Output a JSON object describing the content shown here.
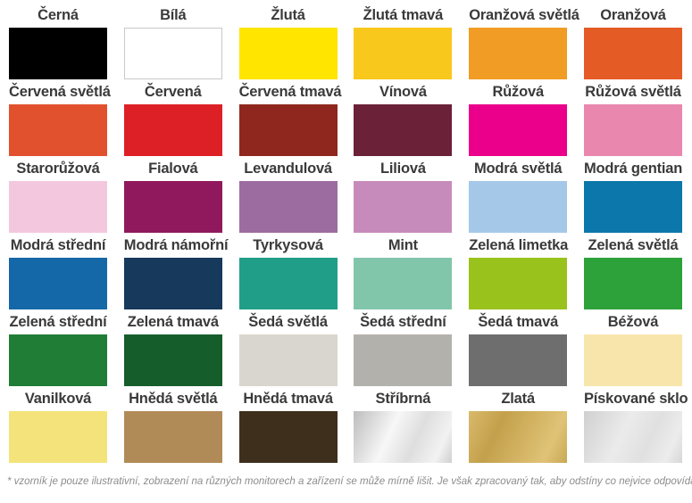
{
  "page": {
    "background": "#ffffff",
    "label_color": "#3a3a3a",
    "footnote": "* vzorník je pouze ilustrativní, zobrazení na různých monitorech a zařízení se může mírně lišit. Je však zpracovaný tak, aby odstíny co nejvice odpovídaly.",
    "footnote_color": "#8c8c8c"
  },
  "swatches": [
    {
      "name": "Černá",
      "color": "#000000"
    },
    {
      "name": "Bílá",
      "color": "#ffffff",
      "border": true
    },
    {
      "name": "Žlutá",
      "color": "#ffe500"
    },
    {
      "name": "Žlutá tmavá",
      "color": "#f8c81d"
    },
    {
      "name": "Oranžová světlá",
      "color": "#f09c25"
    },
    {
      "name": "Oranžová",
      "color": "#e45b26"
    },
    {
      "name": "Červená světlá",
      "color": "#e2512e"
    },
    {
      "name": "Červená",
      "color": "#dd2026"
    },
    {
      "name": "Červená tmavá",
      "color": "#90271f"
    },
    {
      "name": "Vínová",
      "color": "#6b2137"
    },
    {
      "name": "Růžová",
      "color": "#eb008b"
    },
    {
      "name": "Růžová světlá",
      "color": "#e987ae"
    },
    {
      "name": "Starorůžová",
      "color": "#f3c7dd"
    },
    {
      "name": "Fialová",
      "color": "#90195d"
    },
    {
      "name": "Levandulová",
      "color": "#9c6ca0"
    },
    {
      "name": "Liliová",
      "color": "#c78bbb"
    },
    {
      "name": "Modrá světlá",
      "color": "#a5c8e9"
    },
    {
      "name": "Modrá gentian",
      "color": "#0b77aa"
    },
    {
      "name": "Modrá střední",
      "color": "#1568a8"
    },
    {
      "name": "Modrá námořní",
      "color": "#16395c"
    },
    {
      "name": "Tyrkysová",
      "color": "#219e88"
    },
    {
      "name": "Mint",
      "color": "#81c6ab"
    },
    {
      "name": "Zelená limetka",
      "color": "#99c21d"
    },
    {
      "name": "Zelená světlá",
      "color": "#2da23a"
    },
    {
      "name": "Zelená střední",
      "color": "#1f7d36"
    },
    {
      "name": "Zelená tmavá",
      "color": "#165d2c"
    },
    {
      "name": "Šedá světlá",
      "color": "#d8d6ce"
    },
    {
      "name": "Šedá střední",
      "color": "#b3b1ab"
    },
    {
      "name": "Šedá tmavá",
      "color": "#6e6e6e"
    },
    {
      "name": "Béžová",
      "color": "#f8e5ab"
    },
    {
      "name": "Vanilková",
      "color": "#f4e37a"
    },
    {
      "name": "Hnědá světlá",
      "color": "#b18b57"
    },
    {
      "name": "Hnědá tmavá",
      "color": "#3e2f1d"
    },
    {
      "name": "Stříbrná",
      "gradient": "linear-gradient(115deg, #bdbdbd 0%, #f7f7f7 38%, #dedede 62%, #f2f2f2 85%, #cfcfcf 100%)"
    },
    {
      "name": "Zlatá",
      "gradient": "linear-gradient(115deg, #d9ba6c 0%, #c3a04b 30%, #d2b261 55%, #e0c377 80%, #c8a853 100%)"
    },
    {
      "name": "Pískované sklo",
      "gradient": "linear-gradient(115deg, #d0d0d0 0%, #ebebeb 40%, #e0e0e0 65%, #ececec 85%, #d7d7d7 100%)"
    }
  ]
}
